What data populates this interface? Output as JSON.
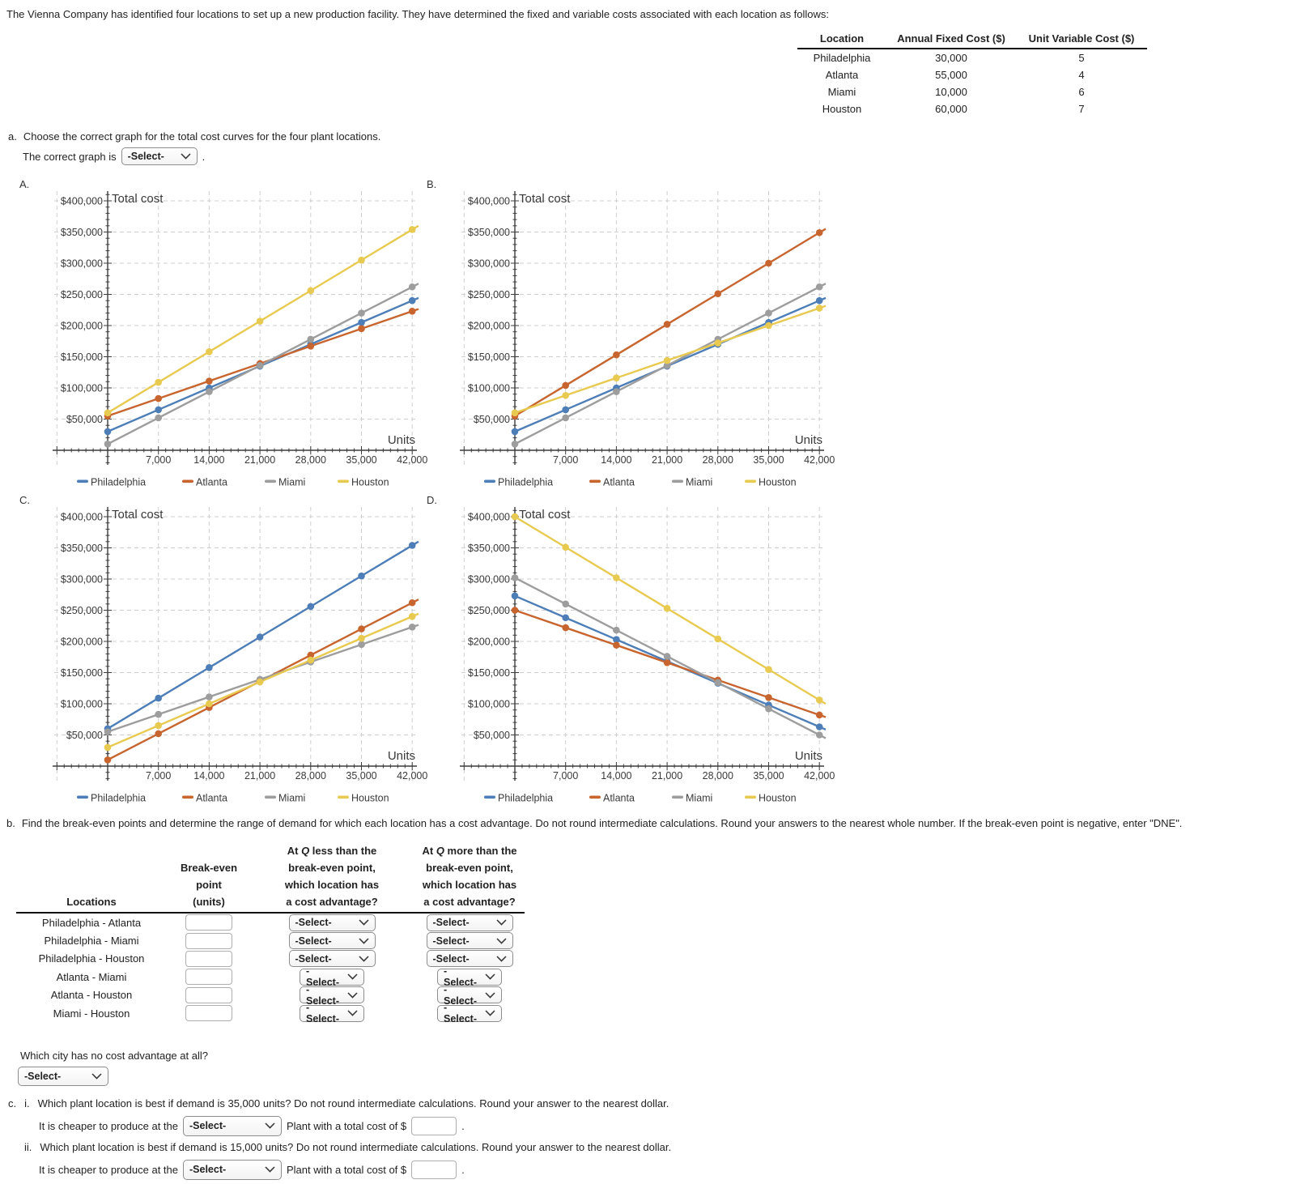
{
  "intro": "The Vienna Company has identified four locations to set up a new production facility. They have determined the fixed and variable costs associated with each location as follows:",
  "cost_table": {
    "headers": [
      "Location",
      "Annual Fixed Cost ($)",
      "Unit Variable Cost ($)"
    ],
    "rows": [
      [
        "Philadelphia",
        "30,000",
        "5"
      ],
      [
        "Atlanta",
        "55,000",
        "4"
      ],
      [
        "Miami",
        "10,000",
        "6"
      ],
      [
        "Houston",
        "60,000",
        "7"
      ]
    ]
  },
  "section_a": {
    "label": "a.",
    "prompt": "Choose the correct graph for the total cost curves for the four plant locations.",
    "answer_prefix": "The correct graph is",
    "select_label": "-Select-",
    "answer_suffix": "."
  },
  "chart_data": [
    {
      "label": "A.",
      "type": "line",
      "title": "Total cost",
      "x_label": "Units",
      "x_points_units": [
        0,
        7000,
        14000,
        21000,
        28000,
        35000,
        42000
      ],
      "x_ticks": [
        7000,
        14000,
        21000,
        28000,
        35000,
        42000
      ],
      "x_tick_labels": [
        "7,000",
        "14,000",
        "21,000",
        "28,000",
        "35,000",
        "42,000"
      ],
      "y_ticks": [
        50000,
        100000,
        150000,
        200000,
        250000,
        300000,
        350000,
        400000
      ],
      "y_tick_labels": [
        "$50,000",
        "$100,000",
        "$150,000",
        "$200,000",
        "$250,000",
        "$300,000",
        "$350,000",
        "$400,000"
      ],
      "series": [
        {
          "name": "Philadelphia",
          "color": "#4d7eb8",
          "intercept": 30000,
          "slope_per_unit": 5,
          "values": [
            30000,
            65000,
            100000,
            135000,
            170000,
            205000,
            240000
          ]
        },
        {
          "name": "Atlanta",
          "color": "#c8652f",
          "intercept": 55000,
          "slope_per_unit": 4,
          "values": [
            55000,
            83000,
            111000,
            139000,
            167000,
            195000,
            223000
          ]
        },
        {
          "name": "Miami",
          "color": "#9d9d9d",
          "intercept": 10000,
          "slope_per_unit": 6,
          "values": [
            10000,
            52000,
            94000,
            136000,
            178000,
            220000,
            262000
          ]
        },
        {
          "name": "Houston",
          "color": "#e9ca51",
          "intercept": 60000,
          "slope_per_unit": 7,
          "values": [
            60000,
            109000,
            158000,
            207000,
            256000,
            305000,
            354000
          ]
        }
      ]
    },
    {
      "label": "B.",
      "type": "line",
      "title": "Total cost",
      "x_label": "Units",
      "x_points_units": [
        0,
        7000,
        14000,
        21000,
        28000,
        35000,
        42000
      ],
      "x_ticks": [
        7000,
        14000,
        21000,
        28000,
        35000,
        42000
      ],
      "x_tick_labels": [
        "7,000",
        "14,000",
        "21,000",
        "28,000",
        "35,000",
        "42,000"
      ],
      "y_ticks": [
        50000,
        100000,
        150000,
        200000,
        250000,
        300000,
        350000,
        400000
      ],
      "y_tick_labels": [
        "$50,000",
        "$100,000",
        "$150,000",
        "$200,000",
        "$250,000",
        "$300,000",
        "$350,000",
        "$400,000"
      ],
      "series": [
        {
          "name": "Philadelphia",
          "color": "#4d7eb8",
          "intercept": 30000,
          "slope_per_unit": 5,
          "values": [
            30000,
            65000,
            100000,
            135000,
            170000,
            205000,
            240000
          ]
        },
        {
          "name": "Atlanta",
          "color": "#c8652f",
          "intercept": 55000,
          "slope_per_unit": 7,
          "values": [
            55000,
            104000,
            153000,
            202000,
            251000,
            300000,
            349000
          ]
        },
        {
          "name": "Miami",
          "color": "#9d9d9d",
          "intercept": 10000,
          "slope_per_unit": 6,
          "values": [
            10000,
            52000,
            94000,
            136000,
            178000,
            220000,
            262000
          ]
        },
        {
          "name": "Houston",
          "color": "#e9ca51",
          "intercept": 60000,
          "slope_per_unit": 4,
          "values": [
            60000,
            88000,
            116000,
            144000,
            172000,
            200000,
            228000
          ]
        }
      ]
    },
    {
      "label": "C.",
      "type": "line",
      "title": "Total cost",
      "x_label": "Units",
      "x_points_units": [
        0,
        7000,
        14000,
        21000,
        28000,
        35000,
        42000
      ],
      "x_ticks": [
        7000,
        14000,
        21000,
        28000,
        35000,
        42000
      ],
      "x_tick_labels": [
        "7,000",
        "14,000",
        "21,000",
        "28,000",
        "35,000",
        "42,000"
      ],
      "y_ticks": [
        50000,
        100000,
        150000,
        200000,
        250000,
        300000,
        350000,
        400000
      ],
      "y_tick_labels": [
        "$50,000",
        "$100,000",
        "$150,000",
        "$200,000",
        "$250,000",
        "$300,000",
        "$350,000",
        "$400,000"
      ],
      "series": [
        {
          "name": "Philadelphia",
          "color": "#4d7eb8",
          "intercept": 60000,
          "slope_per_unit": 7,
          "values": [
            60000,
            109000,
            158000,
            207000,
            256000,
            305000,
            354000
          ]
        },
        {
          "name": "Atlanta",
          "color": "#c8652f",
          "intercept": 10000,
          "slope_per_unit": 6,
          "values": [
            10000,
            52000,
            94000,
            136000,
            178000,
            220000,
            262000
          ]
        },
        {
          "name": "Miami",
          "color": "#9d9d9d",
          "intercept": 55000,
          "slope_per_unit": 4,
          "values": [
            55000,
            83000,
            111000,
            139000,
            167000,
            195000,
            223000
          ]
        },
        {
          "name": "Houston",
          "color": "#e9ca51",
          "intercept": 30000,
          "slope_per_unit": 5,
          "values": [
            30000,
            65000,
            100000,
            135000,
            170000,
            205000,
            240000
          ]
        }
      ]
    },
    {
      "label": "D.",
      "type": "line",
      "title": "Total cost",
      "x_label": "Units",
      "x_points_units": [
        0,
        7000,
        14000,
        21000,
        28000,
        35000,
        42000
      ],
      "x_ticks": [
        7000,
        14000,
        21000,
        28000,
        35000,
        42000
      ],
      "x_tick_labels": [
        "7,000",
        "14,000",
        "21,000",
        "28,000",
        "35,000",
        "42,000"
      ],
      "y_ticks": [
        50000,
        100000,
        150000,
        200000,
        250000,
        300000,
        350000,
        400000
      ],
      "y_tick_labels": [
        "$50,000",
        "$100,000",
        "$150,000",
        "$200,000",
        "$250,000",
        "$300,000",
        "$350,000",
        "$400,000"
      ],
      "series": [
        {
          "name": "Philadelphia",
          "color": "#4d7eb8",
          "intercept": 273000,
          "slope_per_unit": -5,
          "values": [
            273000,
            238000,
            203000,
            168000,
            133000,
            98000,
            63000
          ]
        },
        {
          "name": "Atlanta",
          "color": "#c8652f",
          "intercept": 250000,
          "slope_per_unit": -4,
          "values": [
            250000,
            222000,
            194000,
            166000,
            138000,
            110000,
            82000
          ]
        },
        {
          "name": "Miami",
          "color": "#9d9d9d",
          "intercept": 302000,
          "slope_per_unit": -6,
          "values": [
            302000,
            260000,
            218000,
            176000,
            134000,
            92000,
            50000
          ]
        },
        {
          "name": "Houston",
          "color": "#e9ca51",
          "intercept": 400000,
          "slope_per_unit": -7,
          "values": [
            400000,
            351000,
            302000,
            253000,
            204000,
            155000,
            106000
          ]
        }
      ]
    }
  ],
  "section_b": {
    "label": "b.",
    "prompt": "Find the break-even points and determine the range of demand for which each location has a cost advantage. Do not round intermediate calculations. Round your answers to the nearest whole number. If the break-even point is negative, enter \"DNE\".",
    "table": {
      "col1_header": "Locations",
      "col2_header": [
        "Break-even point",
        "(units)"
      ],
      "col3_header": [
        "At Q less than the",
        "break-even point,",
        "which location has",
        "a cost advantage?"
      ],
      "col4_header": [
        "At Q more than the",
        "break-even point,",
        "which location has",
        "a cost advantage?"
      ],
      "rows": [
        "Philadelphia - Atlanta",
        "Philadelphia - Miami",
        "Philadelphia - Houston",
        "Atlanta - Miami",
        "Atlanta - Houston",
        "Miami - Houston"
      ],
      "select_label": "-Select-"
    },
    "no_advantage_question": "Which city has no cost advantage at all?",
    "select_label": "-Select-"
  },
  "section_c": {
    "label": "c.",
    "q1_label": "i.",
    "q1": "Which plant location is best if demand is 35,000 units? Do not round intermediate calculations. Round your answer to the nearest dollar.",
    "q2_label": "ii.",
    "q2": "Which plant location is best if demand is 15,000 units? Do not round intermediate calculations. Round your answer to the nearest dollar.",
    "answer_prefix": "It is cheaper to produce at the",
    "answer_mid": "Plant with a total cost of $",
    "answer_suffix": ".",
    "select_label": "-Select-"
  }
}
